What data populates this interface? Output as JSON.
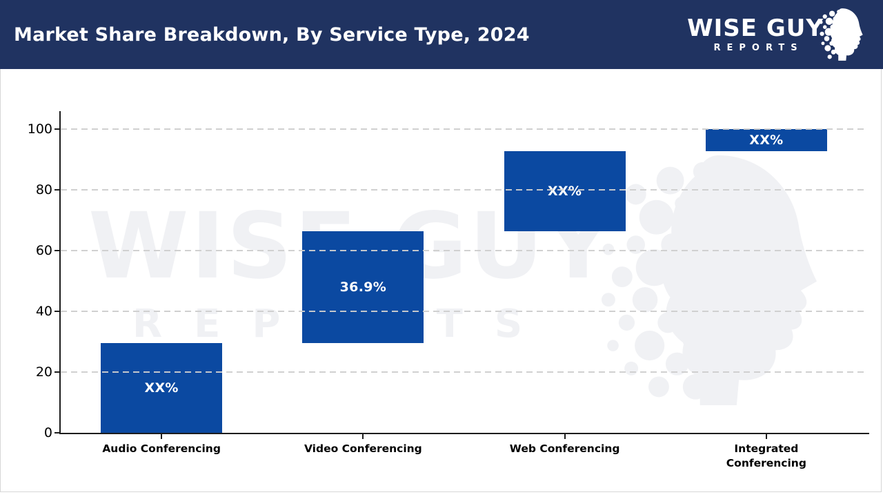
{
  "header": {
    "title": "Market Share Breakdown, By Service Type, 2024",
    "background_color": "#203361",
    "logo": {
      "line1": "WISE GUY",
      "line2": "REPORTS",
      "icon": "dotted-head-profile"
    }
  },
  "watermark": {
    "line1": "WISE GUY",
    "line2": "REPORTS",
    "icon": "dotted-head-profile"
  },
  "chart_data": {
    "type": "bar",
    "subtype": "waterfall",
    "title": "Market Share Breakdown, By Service Type, 2024",
    "categories": [
      "Audio Conferencing",
      "Video Conferencing",
      "Web Conferencing",
      "Integrated Conferencing"
    ],
    "segments": [
      {
        "category": "Audio Conferencing",
        "start": 0,
        "end": 29.4,
        "value": 29.4,
        "label": "XX%"
      },
      {
        "category": "Video Conferencing",
        "start": 29.4,
        "end": 66.3,
        "value": 36.9,
        "label": "36.9%"
      },
      {
        "category": "Web Conferencing",
        "start": 66.3,
        "end": 92.7,
        "value": 26.4,
        "label": "XX%"
      },
      {
        "category": "Integrated Conferencing",
        "start": 92.7,
        "end": 100,
        "value": 7.3,
        "label": "XX%"
      }
    ],
    "yticks": [
      0,
      20,
      40,
      60,
      80,
      100
    ],
    "ylim": [
      0,
      100
    ],
    "xlabel": "",
    "ylabel": "",
    "grid": "dashed-horizontal",
    "legend": "none",
    "bar_color": "#0b49a1",
    "bar_label_color": "#ffffff",
    "gridline_color": "#d3d3d3",
    "axis_color": "#1c1c1c"
  }
}
